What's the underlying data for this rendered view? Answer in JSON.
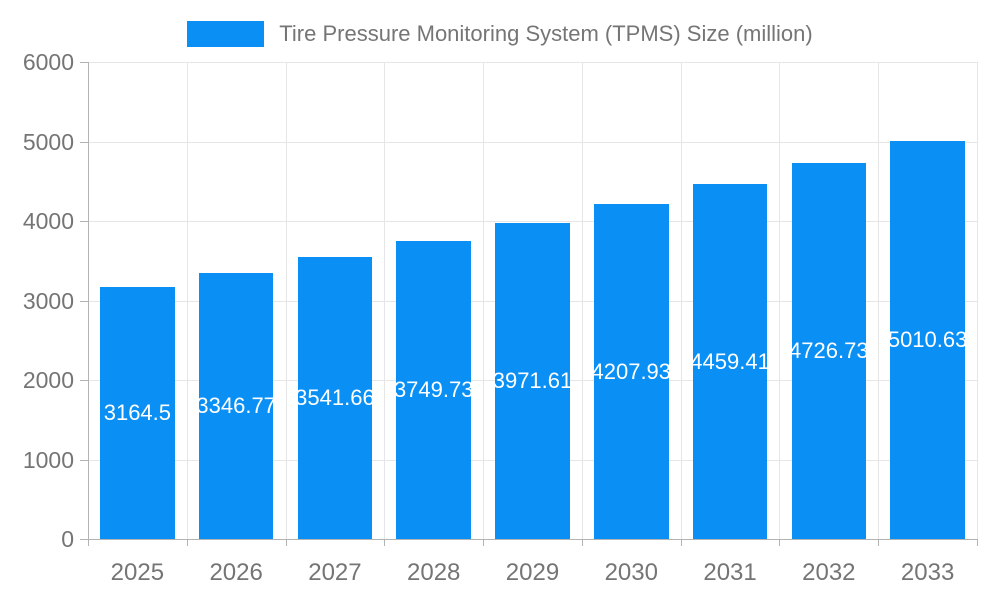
{
  "legend": {
    "label": "Tire Pressure Monitoring System (TPMS) Size (million)",
    "swatch_color": "#0a8ff5"
  },
  "chart_data": {
    "type": "bar",
    "title": "Tire Pressure Monitoring System (TPMS) Size (million)",
    "categories": [
      "2025",
      "2026",
      "2027",
      "2028",
      "2029",
      "2030",
      "2031",
      "2032",
      "2033"
    ],
    "series": [
      {
        "name": "Tire Pressure Monitoring System (TPMS) Size (million)",
        "values": [
          3164.5,
          3346.77,
          3541.66,
          3749.73,
          3971.61,
          4207.93,
          4459.41,
          4726.73,
          5010.63
        ]
      }
    ],
    "bar_labels": [
      "3164.5",
      "3346.77",
      "3541.66",
      "3749.73",
      "3971.61",
      "4207.93",
      "4459.41",
      "4726.73",
      "5010.63"
    ],
    "xlabel": "",
    "ylabel": "",
    "ylim": [
      0,
      6000
    ],
    "yticks": [
      0,
      1000,
      2000,
      3000,
      4000,
      5000,
      6000
    ],
    "grid": true,
    "legend_position": "top",
    "bar_color": "#0a8ff5",
    "bar_label_color": "#ffffff",
    "axis_text_color": "#757575",
    "grid_color": "#e6e6e6",
    "axis_line_color": "#b3b3b3"
  }
}
